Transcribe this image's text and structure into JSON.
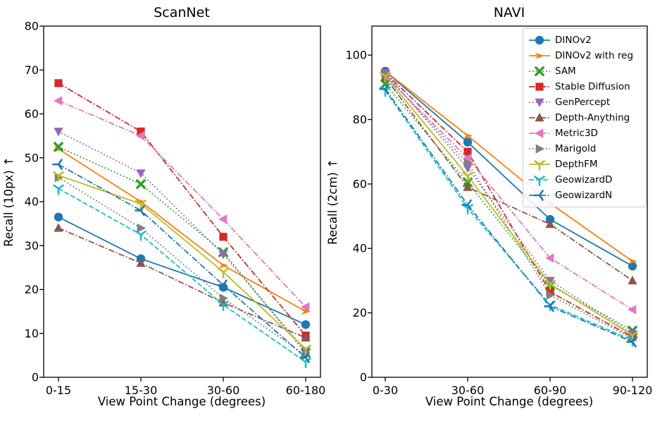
{
  "figure": {
    "background": "#ffffff"
  },
  "models": [
    {
      "name": "DINOv2",
      "color": "#1f77b4",
      "marker": "circle",
      "line": "solid"
    },
    {
      "name": "DINOv2 with reg",
      "color": "#ff7f0e",
      "marker": "arrow-right",
      "line": "solid"
    },
    {
      "name": "SAM",
      "color": "#2ca02c",
      "marker": "x",
      "line": "dotted"
    },
    {
      "name": "Stable Diffusion",
      "color": "#d62728",
      "marker": "square",
      "line": "dashdot"
    },
    {
      "name": "GenPercept",
      "color": "#9467bd",
      "marker": "triangle-down",
      "line": "dotted"
    },
    {
      "name": "Depth-Anything",
      "color": "#8c564b",
      "marker": "triangle-up",
      "line": "dashdot"
    },
    {
      "name": "Metric3D",
      "color": "#e377c2",
      "marker": "triangle-left",
      "line": "dashdot"
    },
    {
      "name": "Marigold",
      "color": "#7f7f7f",
      "marker": "triangle-right",
      "line": "dotted"
    },
    {
      "name": "DepthFM",
      "color": "#bcbd22",
      "marker": "tri-down",
      "line": "solid"
    },
    {
      "name": "GeowizardD",
      "color": "#17becf",
      "marker": "tri-down",
      "line": "dashed"
    },
    {
      "name": "GeowizardN",
      "color": "#1f77b4",
      "marker": "tri-left",
      "line": "dashdot"
    }
  ],
  "chart_data": [
    {
      "type": "line",
      "title": "ScanNet",
      "xlabel": "View Point Change (degrees)",
      "ylabel": "Recall (10px) ↑",
      "categories": [
        "0-15",
        "15-30",
        "30-60",
        "60-180"
      ],
      "ylim": [
        0,
        80
      ],
      "yticks": [
        0,
        10,
        20,
        30,
        40,
        50,
        60,
        70,
        80
      ],
      "grid": false,
      "legend": false,
      "series": [
        {
          "name": "DINOv2",
          "values": [
            36.5,
            27,
            20.5,
            12
          ]
        },
        {
          "name": "DINOv2 with reg",
          "values": [
            52,
            40,
            25.5,
            15
          ]
        },
        {
          "name": "SAM",
          "values": [
            52.5,
            44,
            28.5,
            5.5
          ]
        },
        {
          "name": "Stable Diffusion",
          "values": [
            67,
            56,
            32,
            9.5
          ]
        },
        {
          "name": "GenPercept",
          "values": [
            56,
            46.5,
            28,
            6
          ]
        },
        {
          "name": "Depth-Anything",
          "values": [
            34,
            26,
            17,
            9
          ]
        },
        {
          "name": "Metric3D",
          "values": [
            63,
            55,
            36,
            16
          ]
        },
        {
          "name": "Marigold",
          "values": [
            45.5,
            34,
            18,
            5
          ]
        },
        {
          "name": "DepthFM",
          "values": [
            46,
            39.5,
            24,
            6.5
          ]
        },
        {
          "name": "GeowizardD",
          "values": [
            43,
            32.5,
            16.5,
            3.5
          ]
        },
        {
          "name": "GeowizardN",
          "values": [
            48.5,
            38,
            21,
            4.5
          ]
        }
      ]
    },
    {
      "type": "line",
      "title": "NAVI",
      "xlabel": "View Point Change (degrees)",
      "ylabel": "Recall (2cm) ↑",
      "categories": [
        "0-30",
        "30-60",
        "60-90",
        "90-120"
      ],
      "ylim": [
        0,
        109
      ],
      "yticks": [
        0,
        20,
        40,
        60,
        80,
        100
      ],
      "grid": false,
      "legend": true,
      "legend_position": "upper right",
      "series": [
        {
          "name": "DINOv2",
          "values": [
            95,
            73,
            49,
            34.5
          ]
        },
        {
          "name": "DINOv2 with reg",
          "values": [
            95,
            75,
            54,
            36
          ]
        },
        {
          "name": "SAM",
          "values": [
            91,
            60.5,
            28.5,
            14.5
          ]
        },
        {
          "name": "Stable Diffusion",
          "values": [
            94.5,
            70,
            26.5,
            12.5
          ]
        },
        {
          "name": "GenPercept",
          "values": [
            94.5,
            65,
            30,
            13.5
          ]
        },
        {
          "name": "Depth-Anything",
          "values": [
            93,
            59,
            47.5,
            30
          ]
        },
        {
          "name": "Metric3D",
          "values": [
            93.5,
            68,
            37,
            21
          ]
        },
        {
          "name": "Marigold",
          "values": [
            94,
            66.5,
            25.5,
            12
          ]
        },
        {
          "name": "DepthFM",
          "values": [
            93.5,
            62.5,
            29,
            13
          ]
        },
        {
          "name": "GeowizardD",
          "values": [
            89,
            52.5,
            22.5,
            11.5
          ]
        },
        {
          "name": "GeowizardN",
          "values": [
            89.5,
            53.5,
            22,
            11
          ]
        }
      ]
    }
  ]
}
